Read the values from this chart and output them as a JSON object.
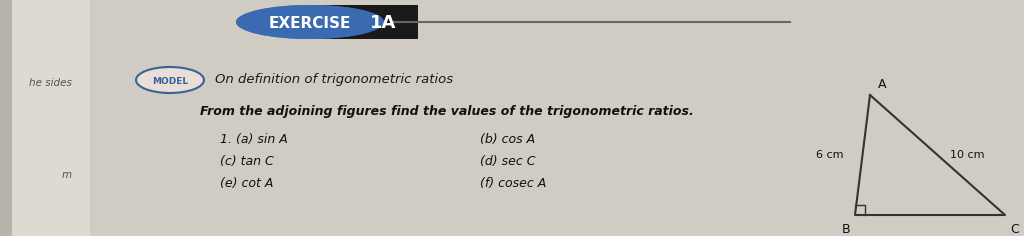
{
  "bg_color": "#ccc8c0",
  "sidebar_color": "#dedad2",
  "page_color": "#d0ccc4",
  "header_ellipse_color": "#3a6ab0",
  "header_text": "EXERCISE",
  "header_num": "1A",
  "model_label": "MODEL",
  "model_label_color": "#3a6099",
  "topic_text": "On definition of trigonometric ratios",
  "instruction_text": "From the adjoining figures find the values of the trigonometric ratios.",
  "items_col1": [
    "1. (a) sin A",
    "(c) tan C",
    "(e) cot A"
  ],
  "items_col2": [
    "(b) cos A",
    "(d) sec C",
    "(f) cosec A"
  ],
  "label_A": "A",
  "label_B": "B",
  "label_C": "C",
  "side_AB": "6 cm",
  "side_AC": "10 cm",
  "left_text1": "he sides",
  "left_text2": "m",
  "header_line_color": "#666666"
}
